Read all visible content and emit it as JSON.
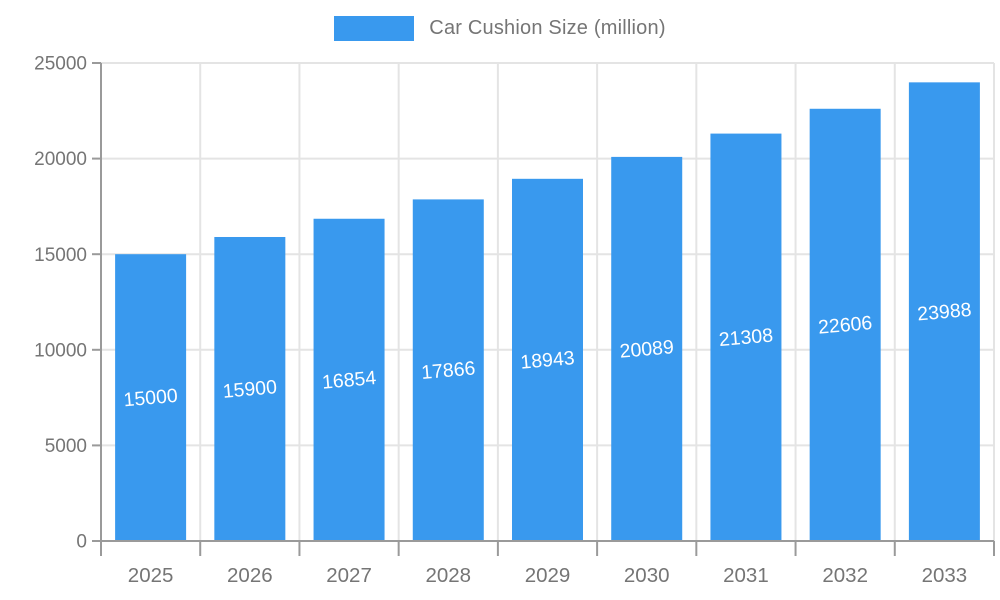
{
  "chart_data": {
    "type": "bar",
    "title": "Car Cushion Size (million)",
    "legend": {
      "label": "Car Cushion Size (million)",
      "position": "top-center"
    },
    "categories": [
      "2025",
      "2026",
      "2027",
      "2028",
      "2029",
      "2030",
      "2031",
      "2032",
      "2033"
    ],
    "series": [
      {
        "name": "Car Cushion Size (million)",
        "values": [
          15000,
          15900,
          16854,
          17866,
          18943,
          20089,
          21308,
          22606,
          23988
        ]
      }
    ],
    "bar_value_labels": [
      "15000",
      "15900",
      "16854",
      "17866",
      "18943",
      "20089",
      "21308",
      "22606",
      "23988"
    ],
    "xlabel": "",
    "ylabel": "",
    "ylim": [
      0,
      25000
    ],
    "yticks": [
      0,
      5000,
      10000,
      15000,
      20000,
      25000
    ],
    "ytick_labels": [
      "0",
      "5000",
      "10000",
      "15000",
      "20000",
      "25000"
    ],
    "grid": "horizontal and vertical light gray gridlines",
    "colors": {
      "bar": "#3999EE",
      "bar_label_text": "#FFFFFF",
      "axis": "#9A9A9A",
      "grid": "#E4E4E4",
      "tick_text": "#757575",
      "background": "#FFFFFF"
    }
  }
}
